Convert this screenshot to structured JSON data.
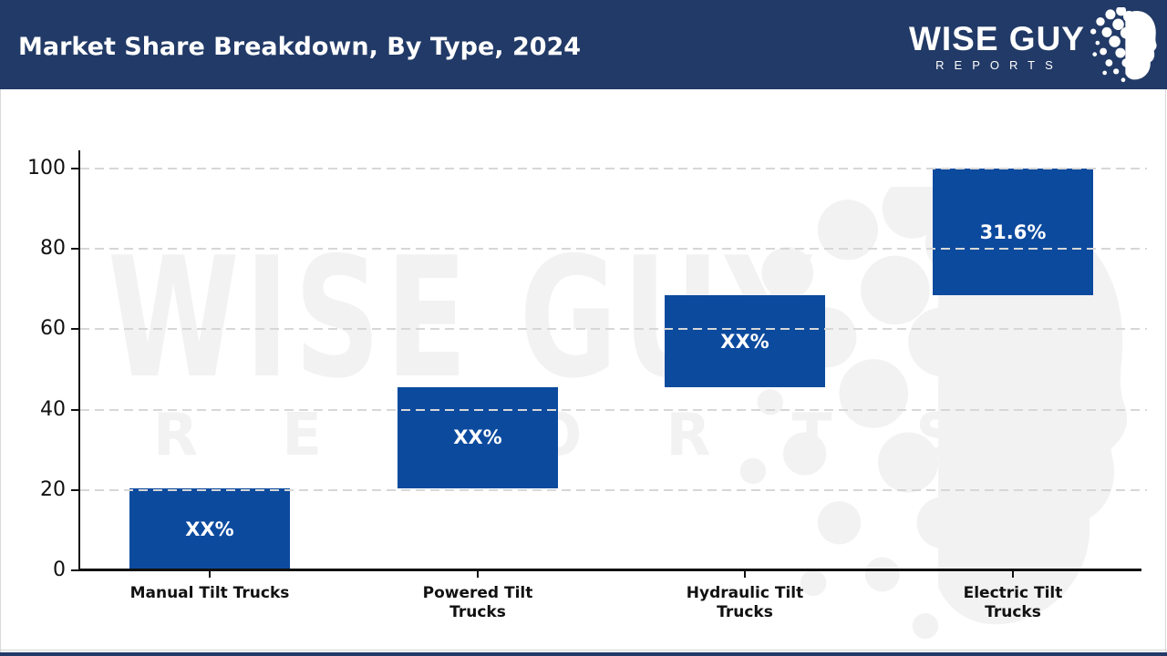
{
  "header": {
    "title": "Market Share Breakdown, By Type, 2024"
  },
  "logo": {
    "name_top": "WISE GUY",
    "name_bottom": "REPORTS",
    "face_icon": "dotted-head-profile-icon"
  },
  "watermark": {
    "line1": "WISE GUY",
    "line2": "REPORTS",
    "face_icon": "dotted-head-profile-icon"
  },
  "colors": {
    "header_bg": "#223a67",
    "footer_bg": "#223a67",
    "bar": "#0c4a9e",
    "bar_label": "#ffffff",
    "axis": "#111111",
    "grid": "#d7d7d7",
    "watermark": "#f2f2f3"
  },
  "chart_data": {
    "type": "bar",
    "subtype": "waterfall",
    "title": "Market Share Breakdown, By Type, 2024",
    "unit": "%",
    "ylim": [
      0,
      100
    ],
    "yticks": [
      0,
      20,
      40,
      60,
      80,
      100
    ],
    "grid": "horizontal dashed, drawn above bars",
    "legend": "none",
    "categories": [
      "Manual Tilt Trucks",
      "Powered Tilt Trucks",
      "Hydraulic Tilt Trucks",
      "Electric Tilt Trucks"
    ],
    "category_label_lines": [
      [
        "Manual Tilt Trucks"
      ],
      [
        "Powered Tilt",
        "Trucks"
      ],
      [
        "Hydraulic Tilt",
        "Trucks"
      ],
      [
        "Electric Tilt",
        "Trucks"
      ]
    ],
    "segments": [
      {
        "category": "Manual Tilt Trucks",
        "start": 0,
        "end": 20.4,
        "label": "XX%"
      },
      {
        "category": "Powered Tilt Trucks",
        "start": 20.4,
        "end": 45.6,
        "label": "XX%"
      },
      {
        "category": "Hydraulic Tilt Trucks",
        "start": 45.6,
        "end": 68.4,
        "label": "XX%"
      },
      {
        "category": "Electric Tilt Trucks",
        "start": 68.4,
        "end": 100,
        "label": "31.6%"
      }
    ]
  }
}
